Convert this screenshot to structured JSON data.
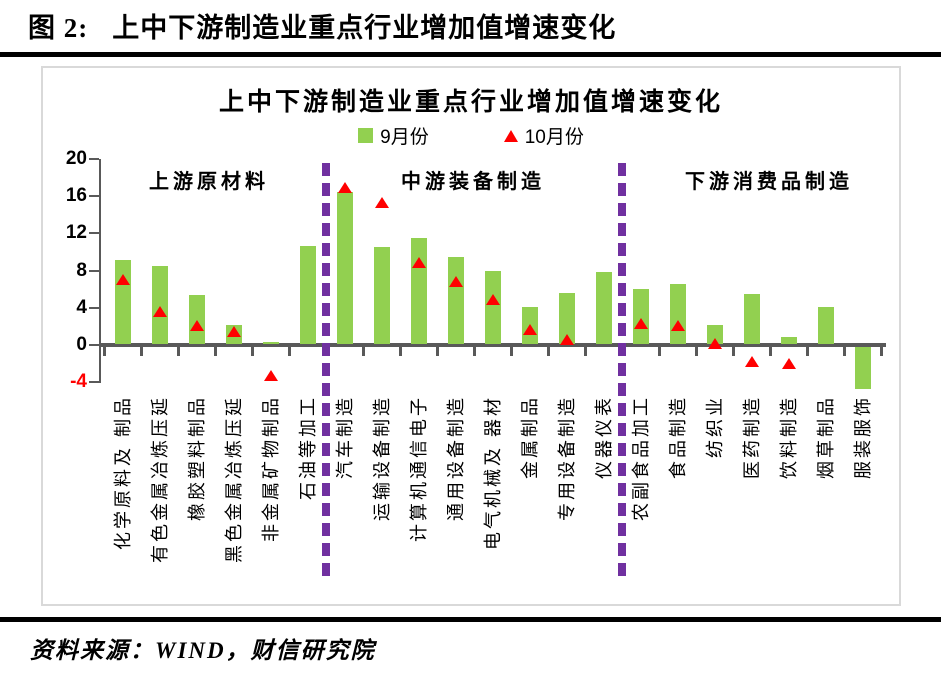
{
  "page": {
    "figure_label": "图 2:",
    "figure_title": "上中下游制造业重点行业增加值增速变化",
    "source_text": "资料来源：WIND，财信研究院"
  },
  "chart": {
    "title": "上中下游制造业重点行业增加值增速变化",
    "legend": [
      {
        "label": "9月份",
        "marker": "square",
        "color": "#92D050"
      },
      {
        "label": "10月份",
        "marker": "triangle",
        "color": "#FF0000"
      }
    ]
  },
  "chart_data": {
    "type": "bar",
    "title": "上中下游制造业重点行业增加值增速变化",
    "xlabel": "",
    "ylabel": "",
    "categories": [
      "化学原料及 制品",
      "有色金属冶炼压延",
      "橡胶塑料制品",
      "黑色金属冶炼压延",
      "非金属矿物制品",
      "石油等加工",
      "汽车制造",
      "运输设备制造",
      "计算机通信电子",
      "通用设备制造",
      "电气机械及 器材",
      "金属制品",
      "专用设备制造",
      "仪器仪表",
      "农副食品加工",
      "食品制造",
      "纺织业",
      "医药制造",
      "饮料制造",
      "烟草制品",
      "服装服饰"
    ],
    "series": [
      {
        "name": "9月份",
        "type": "bar",
        "color": "#92D050",
        "values": [
          9.0,
          8.4,
          5.3,
          2.0,
          0.2,
          10.5,
          16.3,
          10.4,
          11.4,
          9.4,
          7.8,
          4.0,
          5.5,
          7.7,
          5.9,
          6.5,
          2.0,
          5.4,
          0.8,
          4.0,
          -4.5
        ]
      },
      {
        "name": "10月份",
        "type": "scatter",
        "color": "#FF0000",
        "values": [
          7.0,
          3.5,
          2.0,
          1.4,
          -3.3,
          null,
          16.9,
          15.3,
          8.8,
          6.8,
          4.8,
          1.6,
          0.5,
          null,
          2.3,
          2.0,
          0.1,
          -1.8,
          -2.0,
          null,
          null
        ]
      }
    ],
    "groups": [
      {
        "label": "上游原材料",
        "start": 0,
        "end": 5,
        "label_cx": 166
      },
      {
        "label": "中游装备制造",
        "start": 6,
        "end": 13,
        "label_cx": 430
      },
      {
        "label": "下游消费品制造",
        "start": 14,
        "end": 20,
        "label_cx": 726
      }
    ],
    "y_ticks": [
      20,
      16,
      12,
      8,
      4,
      0,
      -4
    ],
    "ylim": [
      -4.6,
      20
    ],
    "grid": false,
    "legend_position": "top",
    "axis_color": "#595959",
    "negative_tick_color": "#FF0000",
    "separator_color": "#7030A0"
  }
}
